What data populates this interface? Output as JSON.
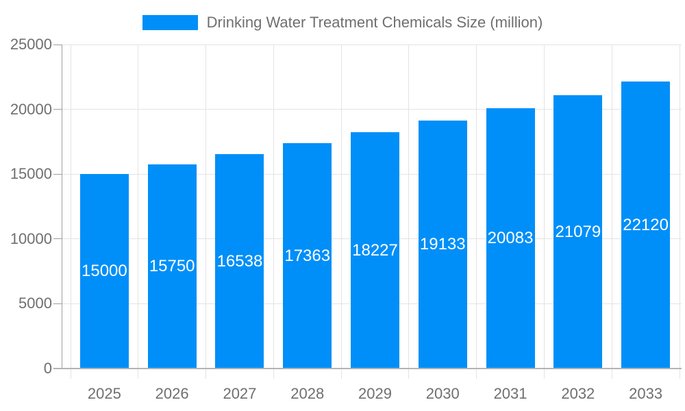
{
  "chart_data": {
    "type": "bar",
    "title": "Drinking Water Treatment Chemicals Size (million)",
    "categories": [
      "2025",
      "2026",
      "2027",
      "2028",
      "2029",
      "2030",
      "2031",
      "2032",
      "2033"
    ],
    "values": [
      15000,
      15750,
      16538,
      17363,
      18227,
      19133,
      20083,
      21079,
      22120
    ],
    "xlabel": "",
    "ylabel": "",
    "ylim": [
      0,
      25000
    ],
    "yticks": [
      0,
      5000,
      10000,
      15000,
      20000,
      25000
    ],
    "grid": "horizontal and vertical category boundaries",
    "legend_position": "top-center",
    "value_labels": "white, centered at bar mid-height",
    "colors": {
      "bar": "#008FF8",
      "value_label": "#FFFFFF",
      "axis_text": "#6F6F6F",
      "gridline": "#E3E3E3",
      "axis_line": "#9E9E9E",
      "baseline": "#B3B3B3",
      "background": "#FFFFFF"
    }
  }
}
